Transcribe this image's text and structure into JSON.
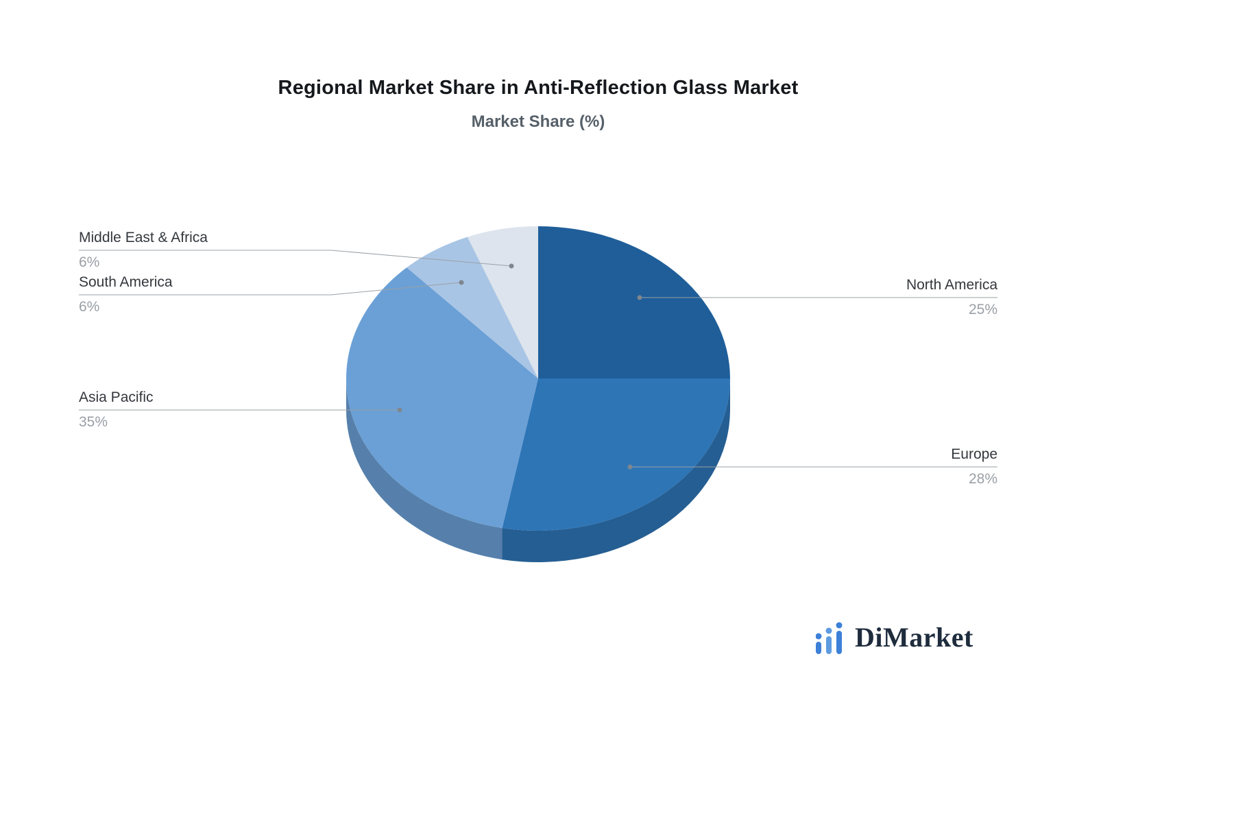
{
  "chart_data": {
    "type": "pie",
    "title": "Regional Market Share in Anti-Reflection Glass Market",
    "subtitle": "Market Share (%)",
    "labels": [
      "North America",
      "Europe",
      "Asia Pacific",
      "South America",
      "Middle East & Africa"
    ],
    "values": [
      25,
      28,
      35,
      6,
      6
    ],
    "value_labels": [
      "25%",
      "28%",
      "35%",
      "6%",
      "6%"
    ],
    "colors": [
      "#1f5e99",
      "#2e75b6",
      "#6ba0d6",
      "#a9c5e5",
      "#dde4ee"
    ],
    "unit": "%",
    "direction": "clockwise",
    "start_angle_deg": 0,
    "style_3d": true,
    "legend_position": "none",
    "annotation_style": "leader-line callouts with name above line and percent below"
  },
  "branding": {
    "logo_text": "DiMarket",
    "logo_icon": "rising-dotted-bars-icon",
    "logo_icon_color": "#3c80d8",
    "logo_text_color": "#1e2c3d"
  }
}
